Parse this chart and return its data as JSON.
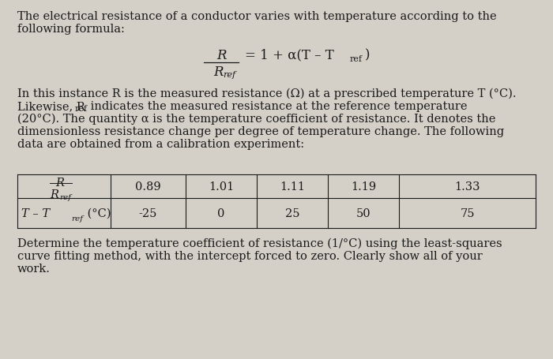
{
  "bg_color": "#d4d0c8",
  "text_color": "#1a1a1a",
  "font_family": "DejaVu Serif",
  "font_size": 10.5,
  "formula_font_size": 12,
  "sub_font_size": 8,
  "line1": "The electrical resistance of a conductor varies with temperature according to the",
  "line2": "following formula:",
  "body_line1": "In this instance R is the measured resistance (Ω) at a prescribed temperature T (°C).",
  "body_line2a": "Likewise, R",
  "body_line2b": "ref",
  "body_line2c": " indicates the measured resistance at the reference temperature",
  "body_line3": "(20°C). The quantity α is the temperature coefficient of resistance. It denotes the",
  "body_line4": "dimensionless resistance change per degree of temperature change. The following",
  "body_line5": "data are obtained from a calibration experiment:",
  "table_row1_vals": [
    "0.89",
    "1.01",
    "1.11",
    "1.19",
    "1.33"
  ],
  "table_row2_vals": [
    "-25",
    "0",
    "25",
    "50",
    "75"
  ],
  "footer_line1": "Determine the temperature coefficient of resistance (1/°C) using the least-squares",
  "footer_line2": "curve fitting method, with the intercept forced to zero. Clearly show all of your",
  "footer_line3": "work."
}
